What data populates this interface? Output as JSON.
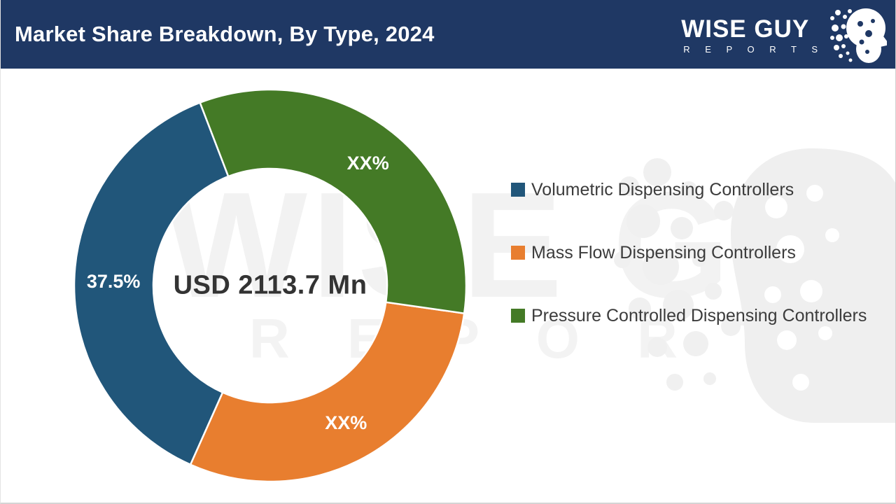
{
  "header": {
    "title": "Market Share Breakdown, By Type, 2024",
    "logo": {
      "line1": "WISE GUY",
      "line2": "R E P O R T S"
    }
  },
  "watermark": {
    "line1": "WISE GUY",
    "line2": "R E P O R T S"
  },
  "colors": {
    "header_bg": "#1f3864",
    "page_bg": "#ffffff",
    "center_text": "#333333",
    "legend_text": "#3c3c3c",
    "watermark": "#f2f2f2"
  },
  "chart_data": {
    "type": "pie",
    "subtype": "donut",
    "title": "Market Share Breakdown, By Type, 2024",
    "center_label": "USD 2113.7 Mn",
    "start_angle_deg": 111,
    "direction": "counterclockwise",
    "hole_radius_ratio": 0.6,
    "legend_position": "right",
    "slices": [
      {
        "name": "Volumetric Dispensing Controllers",
        "label": "37.5%",
        "share_pct": 37.5,
        "color": "#21567a"
      },
      {
        "name": "Mass Flow Dispensing Controllers",
        "label": "XX%",
        "share_pct": 29.4,
        "color": "#e87e2f"
      },
      {
        "name": "Pressure Controlled Dispensing Controllers",
        "label": "XX%",
        "share_pct": 33.1,
        "color": "#447a26"
      }
    ]
  }
}
